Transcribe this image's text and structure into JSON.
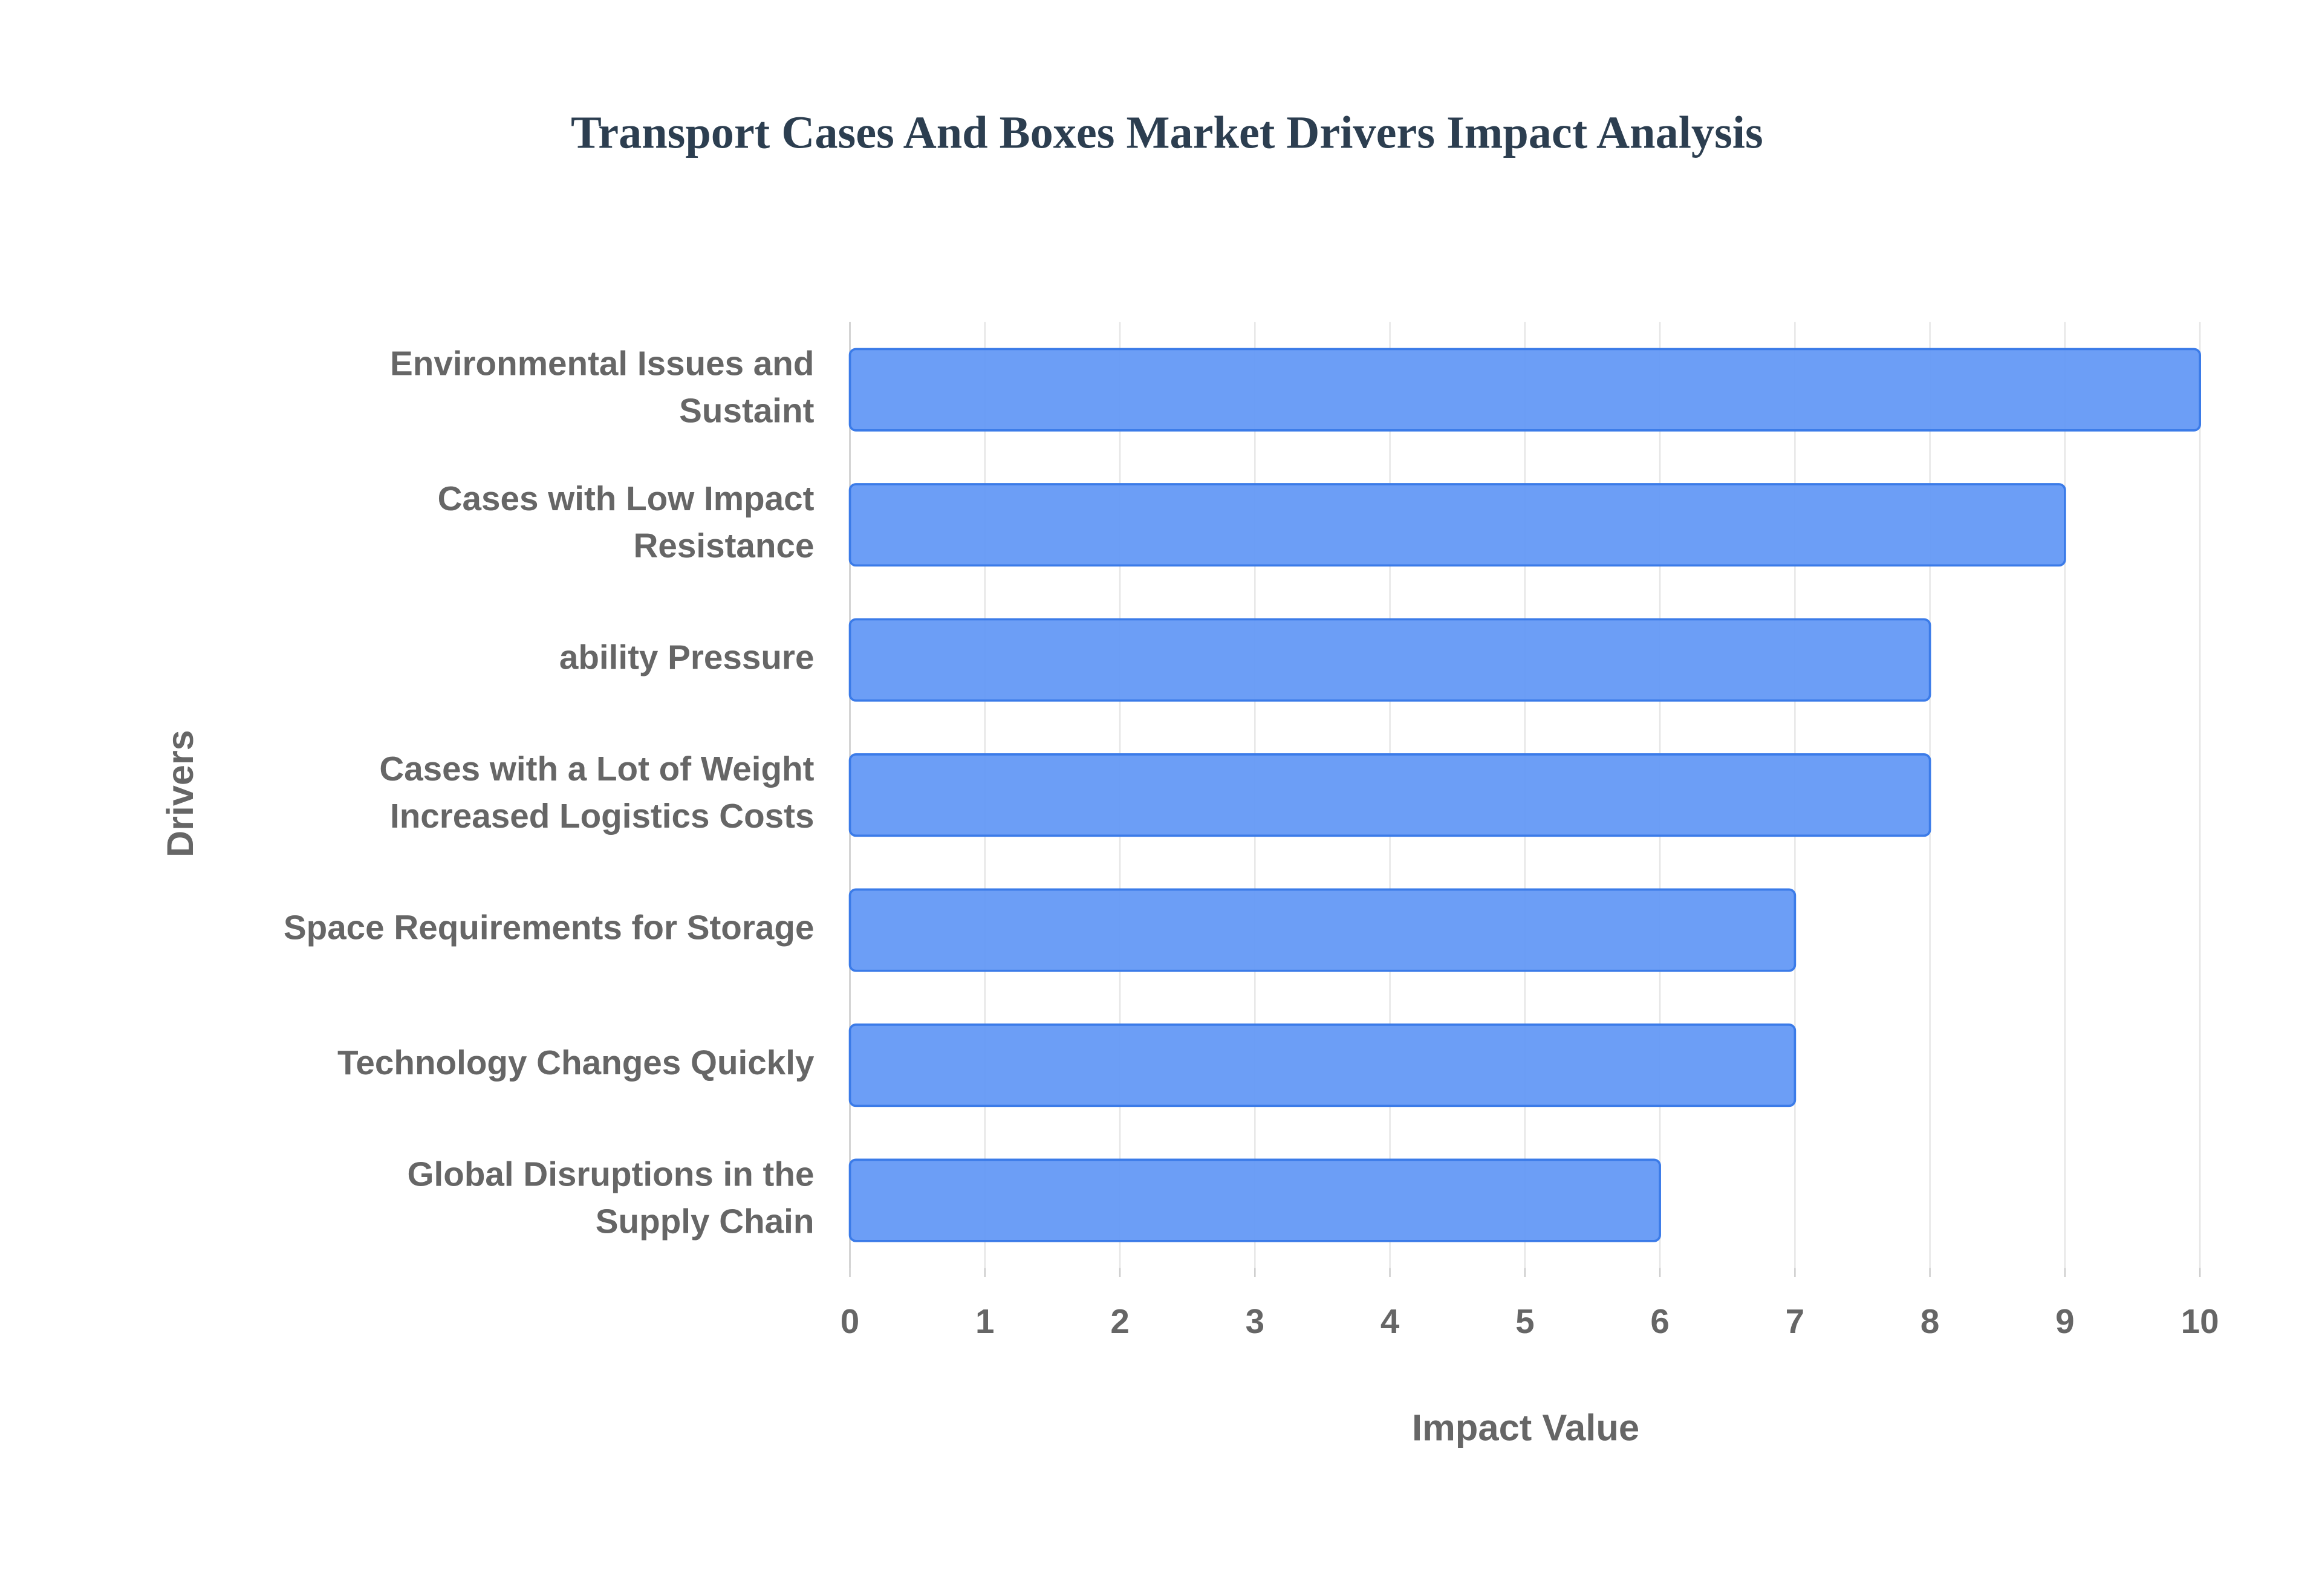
{
  "chart_data": {
    "type": "bar",
    "orientation": "horizontal",
    "title": "Transport Cases And Boxes Market Drivers Impact Analysis",
    "x_label": "Impact Value",
    "y_label": "Drivers",
    "categories": [
      [
        "Environmental Issues and",
        "Sustaint"
      ],
      [
        "Cases with Low Impact",
        "Resistance"
      ],
      [
        "ability Pressure"
      ],
      [
        "Cases with a Lot of Weight",
        "Increased Logistics Costs"
      ],
      [
        "Space Requirements for Storage"
      ],
      [
        "Technology Changes Quickly"
      ],
      [
        "Global Disruptions in the",
        "Supply Chain"
      ]
    ],
    "values": [
      10,
      9,
      8,
      8,
      7,
      7,
      6
    ],
    "color": "#6499f5",
    "edge_color": "#3b7be8",
    "xlim": [
      0,
      10
    ],
    "xticks": [
      0,
      1,
      2,
      3,
      4,
      5,
      6,
      7,
      8,
      9,
      10
    ],
    "grid": true
  }
}
